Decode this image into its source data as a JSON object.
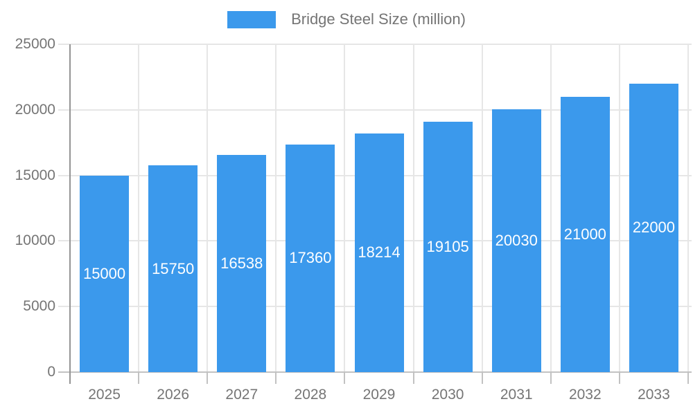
{
  "legend": {
    "label": "Bridge Steel Size (million)",
    "swatch_color": "#3B99EC"
  },
  "chart_data": {
    "type": "bar",
    "title": "",
    "series_name": "Bridge Steel Size (million)",
    "categories": [
      "2025",
      "2026",
      "2027",
      "2028",
      "2029",
      "2030",
      "2031",
      "2032",
      "2033"
    ],
    "values": [
      15000,
      15750,
      16538,
      17360,
      18214,
      19105,
      20030,
      21000,
      22000
    ],
    "bar_labels": [
      "15000",
      "15750",
      "16538",
      "17360",
      "18214",
      "19105",
      "20030",
      "21000",
      "22000"
    ],
    "xlabel": "",
    "ylabel": "",
    "ylim": [
      0,
      25000
    ],
    "yticks": [
      0,
      5000,
      10000,
      15000,
      20000,
      25000
    ],
    "grid": true,
    "legend_position": "top-center",
    "value_label_position": "inside-middle",
    "colors": {
      "bar": "#3B99EC",
      "bar_label": "#FFFFFF",
      "axis_text": "#757575",
      "gridline": "#E6E6E6",
      "y_axis_line": "#949494",
      "x_axis_line": "#C2C2C2",
      "tick": "#C2C2C2",
      "background": "#FFFFFF"
    }
  }
}
